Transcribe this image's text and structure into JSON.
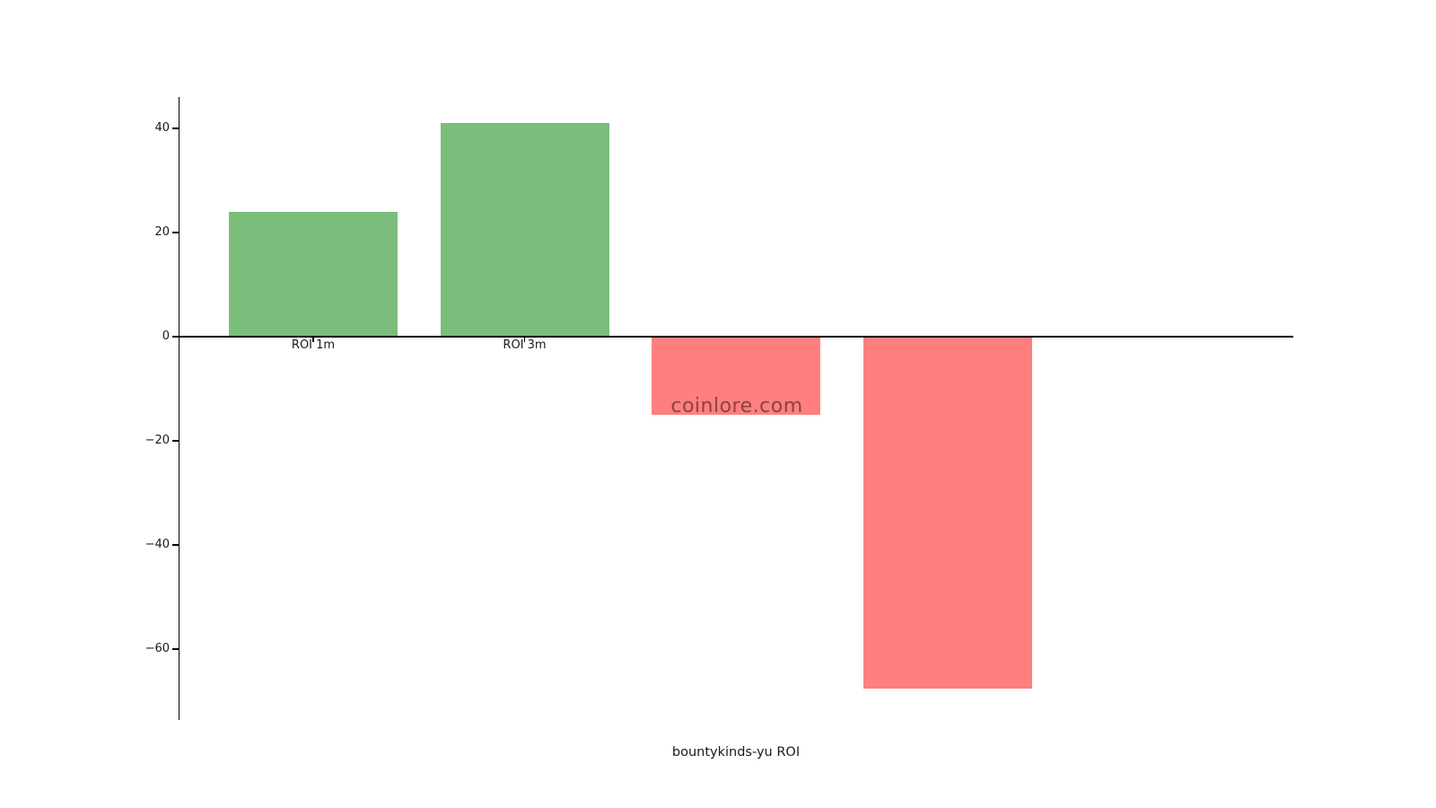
{
  "chart_data": {
    "type": "bar",
    "title": "bountykinds-yu ROI",
    "title_position": "bottom-center",
    "categories": [
      "ROI 1m",
      "ROI 3m",
      "",
      ""
    ],
    "values": [
      24,
      41,
      -14.8,
      -67.4
    ],
    "bar_colors": [
      "#7bbd7b",
      "#7bbd7b",
      "#ff7f7f",
      "#ff7f7f"
    ],
    "positive_color": "#7bbd7b",
    "negative_color": "#ff7f7f",
    "ytick_values": [
      40,
      20,
      0,
      -20,
      -40,
      -60
    ],
    "ytick_labels": [
      "40",
      "20",
      "0",
      "−20",
      "−40",
      "−60"
    ],
    "ylim": [
      -73.5,
      46
    ],
    "xlabel": "",
    "ylabel": "",
    "grid": false,
    "legend_position": "none",
    "axis_color": "#000000",
    "text_color": "#1a1a1a",
    "note": "x tick labels of the two negative bars are hidden behind the red bars"
  },
  "watermark": {
    "text": "coinlore.com",
    "color": "#8a4343"
  }
}
